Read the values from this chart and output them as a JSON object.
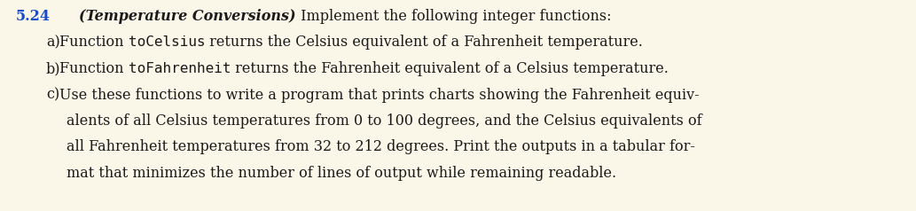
{
  "background_color": "#faf6e8",
  "number": "5.24",
  "number_color": "#1a4cc7",
  "text_color": "#1a1a1a",
  "fontsize": 11.5,
  "title_line": {
    "parts": [
      {
        "text": "(Temperature Conversions)",
        "style": "serif-italic-bold"
      },
      {
        "text": " Implement the following integer functions:",
        "style": "serif"
      }
    ]
  },
  "body_lines": [
    {
      "indent": 1,
      "label": "a)",
      "parts": [
        {
          "text": "Function ",
          "style": "serif"
        },
        {
          "text": "toCelsius",
          "style": "mono"
        },
        {
          "text": " returns the Celsius equivalent of a Fahrenheit temperature.",
          "style": "serif"
        }
      ]
    },
    {
      "indent": 1,
      "label": "b)",
      "parts": [
        {
          "text": "Function ",
          "style": "serif"
        },
        {
          "text": "toFahrenheit",
          "style": "mono"
        },
        {
          "text": " returns the Fahrenheit equivalent of a Celsius temperature.",
          "style": "serif"
        }
      ]
    },
    {
      "indent": 1,
      "label": "c)",
      "parts": [
        {
          "text": "Use these functions to write a program that prints charts showing the Fahrenheit equiv-",
          "style": "serif"
        }
      ]
    },
    {
      "indent": 2,
      "label": "",
      "parts": [
        {
          "text": "alents of all Celsius temperatures from 0 to 100 degrees, and the Celsius equivalents of",
          "style": "serif"
        }
      ]
    },
    {
      "indent": 2,
      "label": "",
      "parts": [
        {
          "text": "all Fahrenheit temperatures from 32 to 212 degrees. Print the outputs in a tabular for-",
          "style": "serif"
        }
      ]
    },
    {
      "indent": 2,
      "label": "",
      "parts": [
        {
          "text": "mat that minimizes the number of lines of output while remaining readable.",
          "style": "serif"
        }
      ]
    }
  ]
}
